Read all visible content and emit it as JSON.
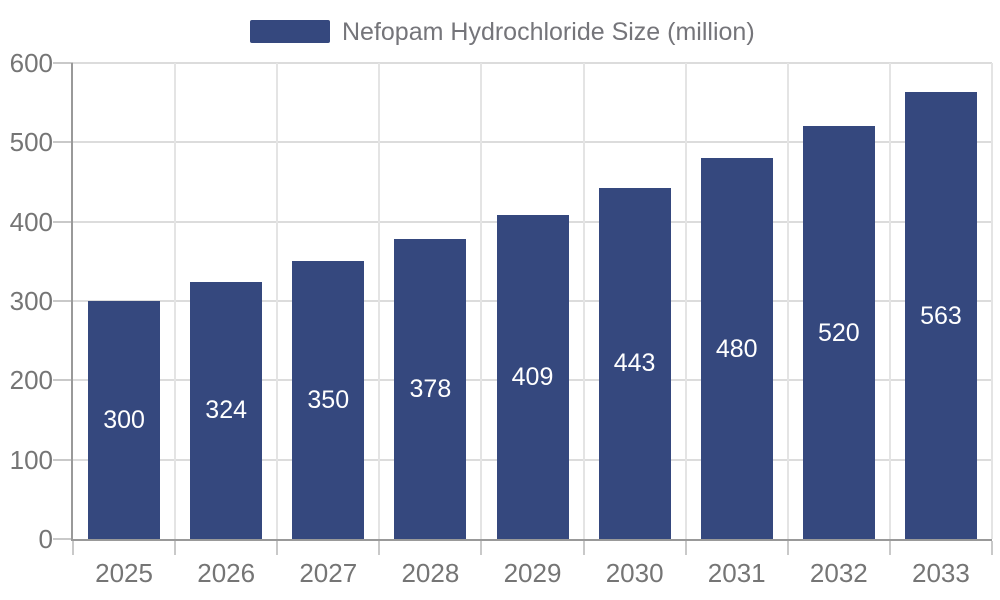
{
  "legend": {
    "label": "Nefopam Hydrochloride Size (million)"
  },
  "chart_data": {
    "type": "bar",
    "title": "Nefopam Hydrochloride Size (million)",
    "categories": [
      "2025",
      "2026",
      "2027",
      "2028",
      "2029",
      "2030",
      "2031",
      "2032",
      "2033"
    ],
    "values": [
      300,
      324,
      350,
      378,
      409,
      443,
      480,
      520,
      563
    ],
    "series_name": "Nefopam Hydrochloride Size (million)",
    "xlabel": "",
    "ylabel": "",
    "ylim": [
      0,
      600
    ],
    "yticks": [
      0,
      100,
      200,
      300,
      400,
      500,
      600
    ],
    "grid": true,
    "legend_position": "top-center",
    "value_labels": "inside-center",
    "colors": {
      "bar": "#35487E",
      "value_label": "#ffffff",
      "axis_line": "#999999",
      "grid_line": "#dcdcdc",
      "tick_mark": "#c9c9c9",
      "tick_text": "#757575",
      "legend_text": "#75757a",
      "background": "#ffffff"
    }
  }
}
